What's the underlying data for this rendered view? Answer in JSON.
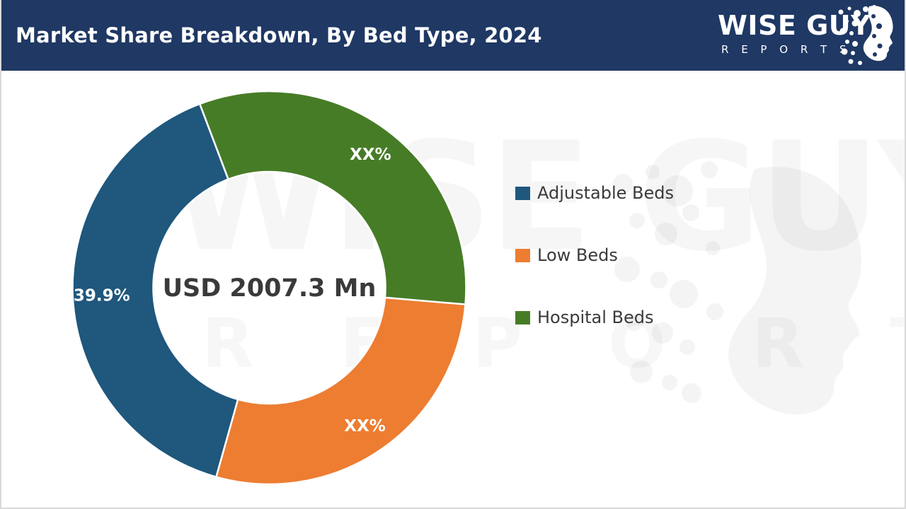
{
  "header": {
    "title": "Market Share Breakdown, By Bed Type, 2024",
    "bg_color": "#1F3864",
    "logo": {
      "line1": "WISE GUY",
      "line2": "R E P O R T S"
    }
  },
  "chart_data": {
    "type": "donut",
    "title": "Market Share Breakdown, By Bed Type, 2024",
    "center_label": "USD 2007.3 Mn",
    "start_angle_deg": 110.7,
    "direction": "counterclockwise",
    "inner_radius_ratio": 0.59,
    "legend_position": "right",
    "segments": [
      {
        "label": "Adjustable Beds",
        "value": 39.9,
        "display": "39.9%",
        "color": "#1F577D"
      },
      {
        "label": "Low Beds",
        "value": 28.0,
        "display": "XX%",
        "color": "#ED7D31"
      },
      {
        "label": "Hospital Beds",
        "value": 32.1,
        "display": "XX%",
        "color": "#477C27"
      }
    ]
  },
  "watermark": {
    "line1": "WISE GUY",
    "line2": "R E P O R T S"
  }
}
